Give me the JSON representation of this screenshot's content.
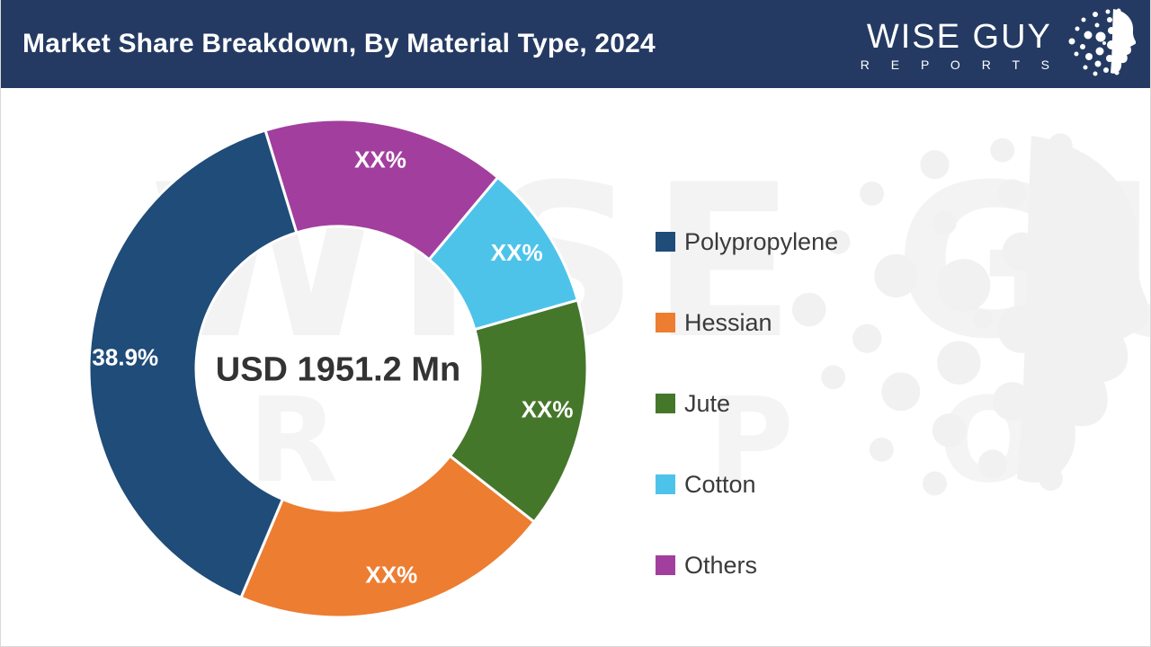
{
  "header": {
    "title": "Market Share Breakdown, By Material Type, 2024",
    "bg_color": "#243A63",
    "logo": {
      "line1": "WISE GUY",
      "line2": "R E P O R T S"
    }
  },
  "chart_data": {
    "type": "pie",
    "subtype": "donut",
    "title": "Market Share Breakdown, By Material Type, 2024",
    "center_label": "USD 1951.2 Mn",
    "start_angle_deg": 343,
    "segments": [
      {
        "name": "Others",
        "label": "XX%",
        "value_pct": 15.8,
        "color": "#A23F9E"
      },
      {
        "name": "Cotton",
        "label": "XX%",
        "value_pct": 9.5,
        "color": "#4EC3E9"
      },
      {
        "name": "Jute",
        "label": "XX%",
        "value_pct": 15.0,
        "color": "#45772B"
      },
      {
        "name": "Hessian",
        "label": "XX%",
        "value_pct": 20.8,
        "color": "#ED7D31"
      },
      {
        "name": "Polypropylene",
        "label": "38.9%",
        "value_pct": 38.9,
        "color": "#1F4C78"
      }
    ],
    "legend_order": [
      "Polypropylene",
      "Hessian",
      "Jute",
      "Cotton",
      "Others"
    ],
    "legend_position": "right"
  },
  "watermark": {
    "line1": "WISE GUY",
    "line2": "R E P O R T S"
  }
}
